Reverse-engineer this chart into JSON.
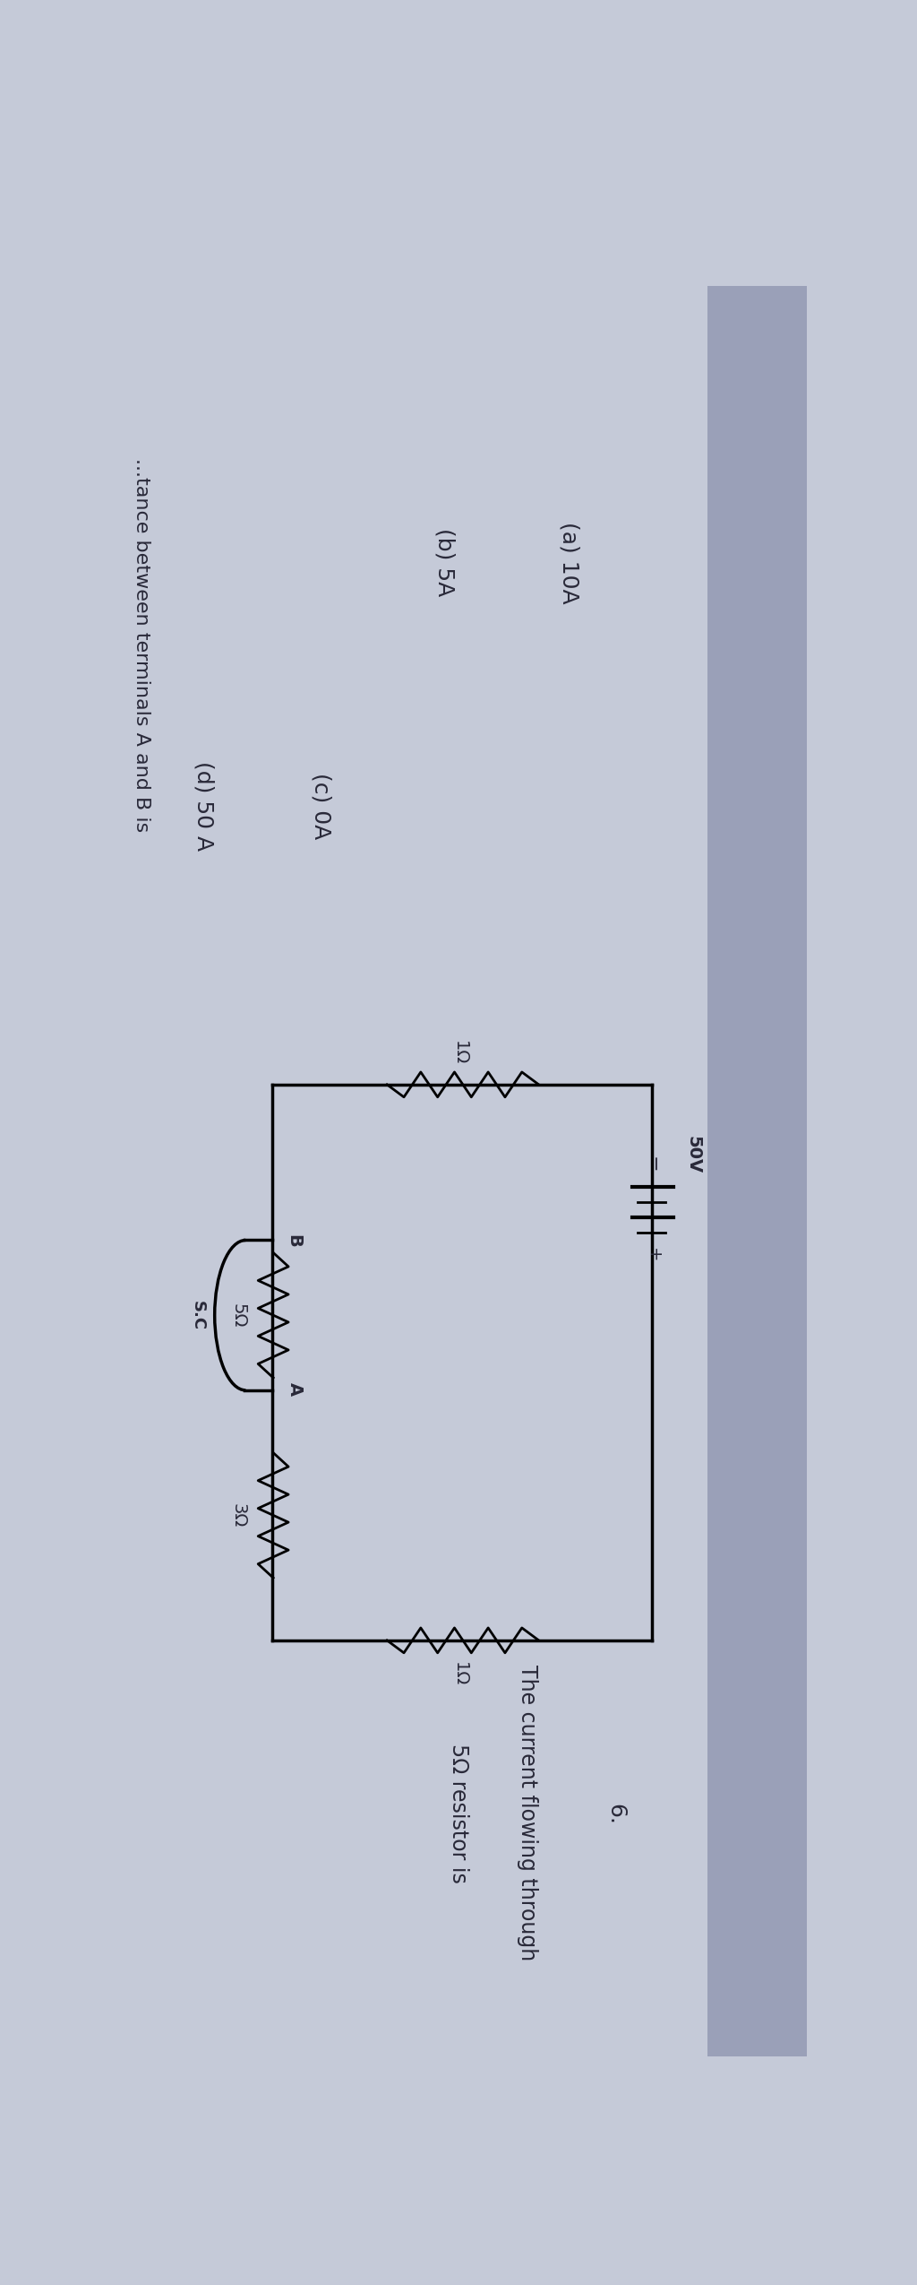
{
  "bg_color": "#c5cad8",
  "bg_top": "#9aa0b8",
  "question_number": "6.",
  "question_text": "The current flowing through 5Ω resistor is",
  "options": [
    {
      "label": "(a)",
      "value": "10A"
    },
    {
      "label": "(b)",
      "value": "5A"
    },
    {
      "label": "(c)",
      "value": "0A"
    },
    {
      "label": "(d)",
      "value": "50 A"
    }
  ],
  "battery_voltage": "50V",
  "sc_label": "S.C",
  "node_a": "A",
  "node_b": "B",
  "r1_label": "1Ω",
  "r2_label": "1Ω",
  "r3_label": "3Ω",
  "r5_label": "5Ω",
  "title_fontsize": 18,
  "option_fontsize": 18,
  "circuit_fontsize": 14,
  "text_color": "#2a2a3a"
}
